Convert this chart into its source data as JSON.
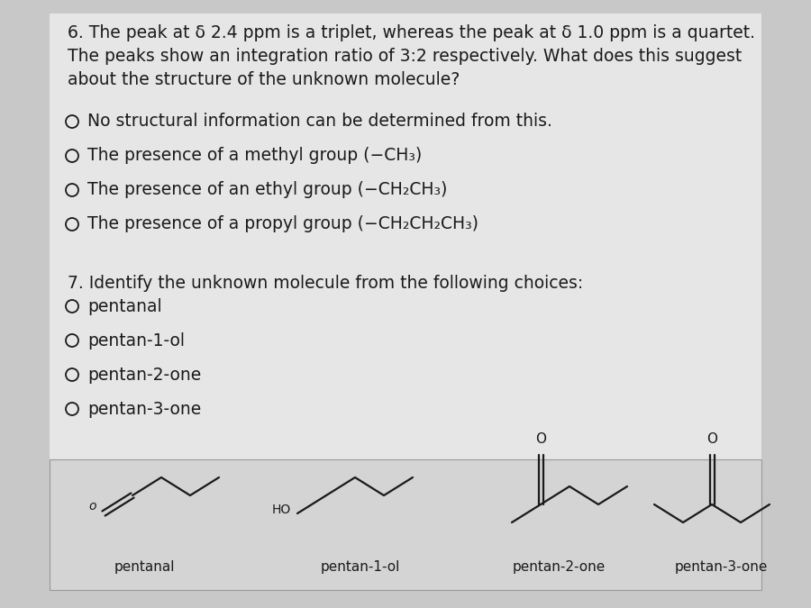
{
  "background_color": "#c8c8c8",
  "content_bg": "#e6e6e6",
  "panel_bg": "#d4d4d4",
  "question6_line1": "6. The peak at δ 2.4 ppm is a triplet, whereas the peak at δ 1.0 ppm is a quartet.",
  "question6_line2": "The peaks show an integration ratio of 3:2 respectively. What does this suggest",
  "question6_line3": "about the structure of the unknown molecule?",
  "q6_options": [
    "No structural information can be determined from this.",
    "The presence of a methyl group (−CH₃)",
    "The presence of an ethyl group (−CH₂CH₃)",
    "The presence of a propyl group (−CH₂CH₂CH₃)"
  ],
  "question7_text": "7. Identify the unknown molecule from the following choices:",
  "q7_options": [
    "pentanal",
    "pentan-1-ol",
    "pentan-2-one",
    "pentan-3-one"
  ],
  "molecule_labels": [
    "pentanal",
    "pentan-1-ol",
    "pentan-2-one",
    "pentan-3-one"
  ],
  "text_color": "#1a1a1a",
  "mol_color": "#1a1a1a",
  "font_size_q": 13.5,
  "font_size_opt": 13.5,
  "font_size_mol_label": 11
}
